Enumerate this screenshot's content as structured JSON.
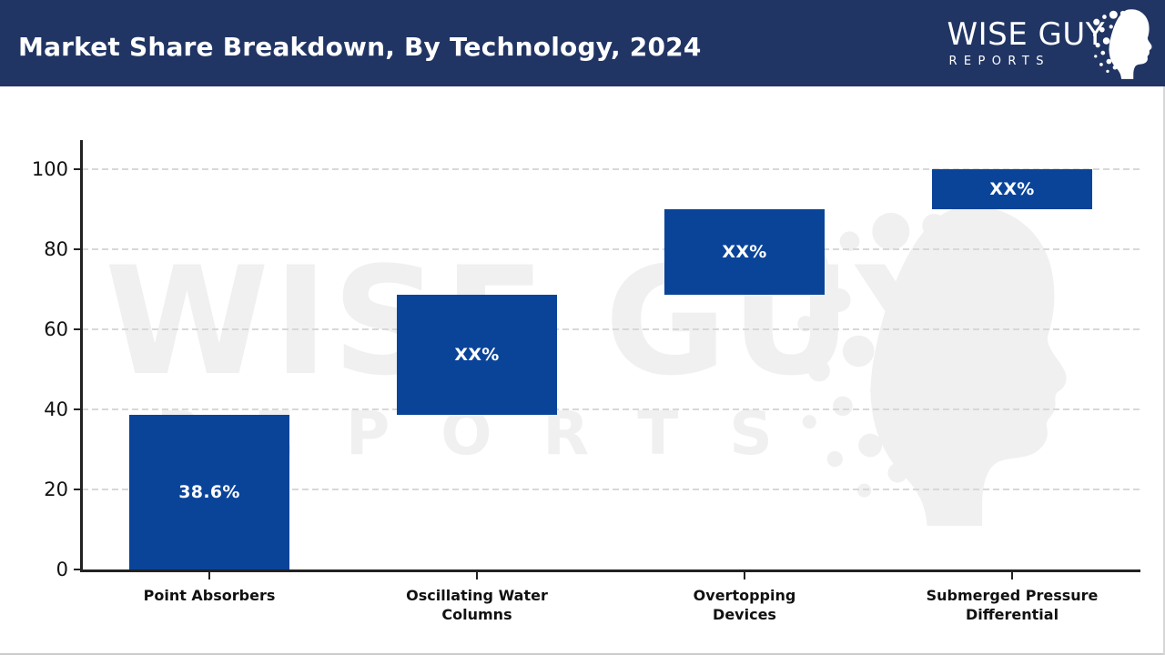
{
  "header": {
    "title": "Market Share Breakdown, By Technology, 2024",
    "logo": {
      "wordmark": "WISE GUY",
      "subtitle": "REPORTS"
    }
  },
  "watermark": {
    "wordmark": "WISE GUY",
    "subtitle": "REPORTS"
  },
  "colors": {
    "header_bg": "#213564",
    "title_text": "#ffffff",
    "bar": "#0a4499",
    "bar_label": "#ffffff",
    "grid": "#d8d8d8",
    "axis": "#222222",
    "tick_text": "#111111",
    "watermark": "#f0f0f0"
  },
  "chart_data": {
    "type": "bar",
    "subtype": "floating-waterfall-of-cumulative-share",
    "title": "Market Share Breakdown, By Technology, 2024",
    "categories": [
      "Point Absorbers",
      "Oscillating Water Columns",
      "Overtopping Devices",
      "Submerged Pressure Differential"
    ],
    "category_label_lines": [
      [
        "Point Absorbers"
      ],
      [
        "Oscillating Water",
        "Columns"
      ],
      [
        "Overtopping",
        "Devices"
      ],
      [
        "Submerged Pressure",
        "Differential"
      ]
    ],
    "series": [
      {
        "name": "Market share (%)",
        "segments": [
          {
            "category": "Point Absorbers",
            "from": 0,
            "to": 38.6,
            "label": "38.6%"
          },
          {
            "category": "Oscillating Water Columns",
            "from": 38.6,
            "to": 68.6,
            "label": "XX%"
          },
          {
            "category": "Overtopping Devices",
            "from": 68.6,
            "to": 90,
            "label": "XX%"
          },
          {
            "category": "Submerged Pressure Differential",
            "from": 90,
            "to": 100,
            "label": "XX%"
          }
        ]
      }
    ],
    "xlabel": "",
    "ylabel": "",
    "yticks": [
      0,
      20,
      40,
      60,
      80,
      100
    ],
    "ylim": [
      0,
      107
    ],
    "grid": "horizontal-dashed",
    "legend": "none"
  }
}
